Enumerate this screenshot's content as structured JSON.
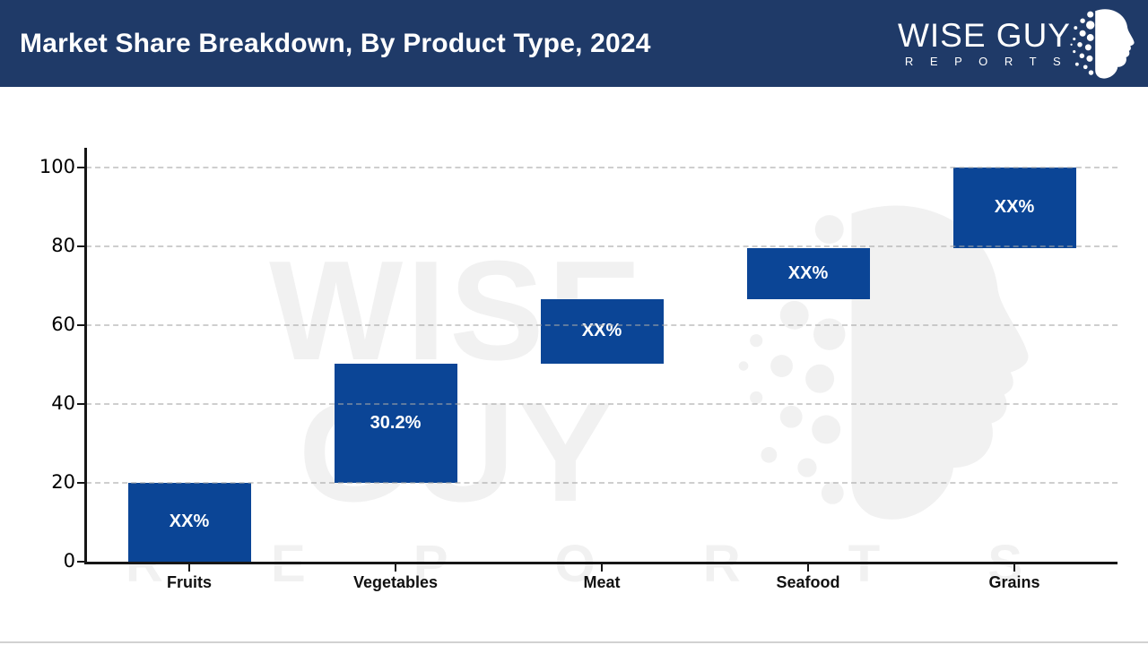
{
  "header": {
    "title": "Market Share Breakdown, By Product Type, 2024",
    "logo": {
      "line1": "WISE GUY",
      "line2": "R E P O R T S"
    }
  },
  "watermark": {
    "line1": "WISE GUY",
    "line2": "R E P O R T S"
  },
  "chart_data": {
    "type": "bar",
    "subtype": "waterfall",
    "title": "Market Share Breakdown, By Product Type, 2024",
    "categories": [
      "Fruits",
      "Vegetables",
      "Meat",
      "Seafood",
      "Grains"
    ],
    "segments": [
      {
        "category": "Fruits",
        "start": 0,
        "end": 20,
        "label": "XX%"
      },
      {
        "category": "Vegetables",
        "start": 20,
        "end": 50.2,
        "label": "30.2%"
      },
      {
        "category": "Meat",
        "start": 50.2,
        "end": 66.6,
        "label": "XX%"
      },
      {
        "category": "Seafood",
        "start": 66.6,
        "end": 79.5,
        "label": "XX%"
      },
      {
        "category": "Grains",
        "start": 79.5,
        "end": 100,
        "label": "XX%"
      }
    ],
    "yticks": [
      0,
      20,
      40,
      60,
      80,
      100
    ],
    "ylim": [
      0,
      104.5
    ],
    "xlabel": "",
    "ylabel": "",
    "grid": "dashed-horizontal-over-bars",
    "legend": "none",
    "bar_color": "#0b4596",
    "bar_label_color": "#ffffff"
  },
  "colors": {
    "header_bg": "#1f3a68",
    "bar": "#0b4596",
    "axis": "#161616",
    "watermark": "#f1f1f1",
    "bottom_rule": "#d2d2d2"
  }
}
